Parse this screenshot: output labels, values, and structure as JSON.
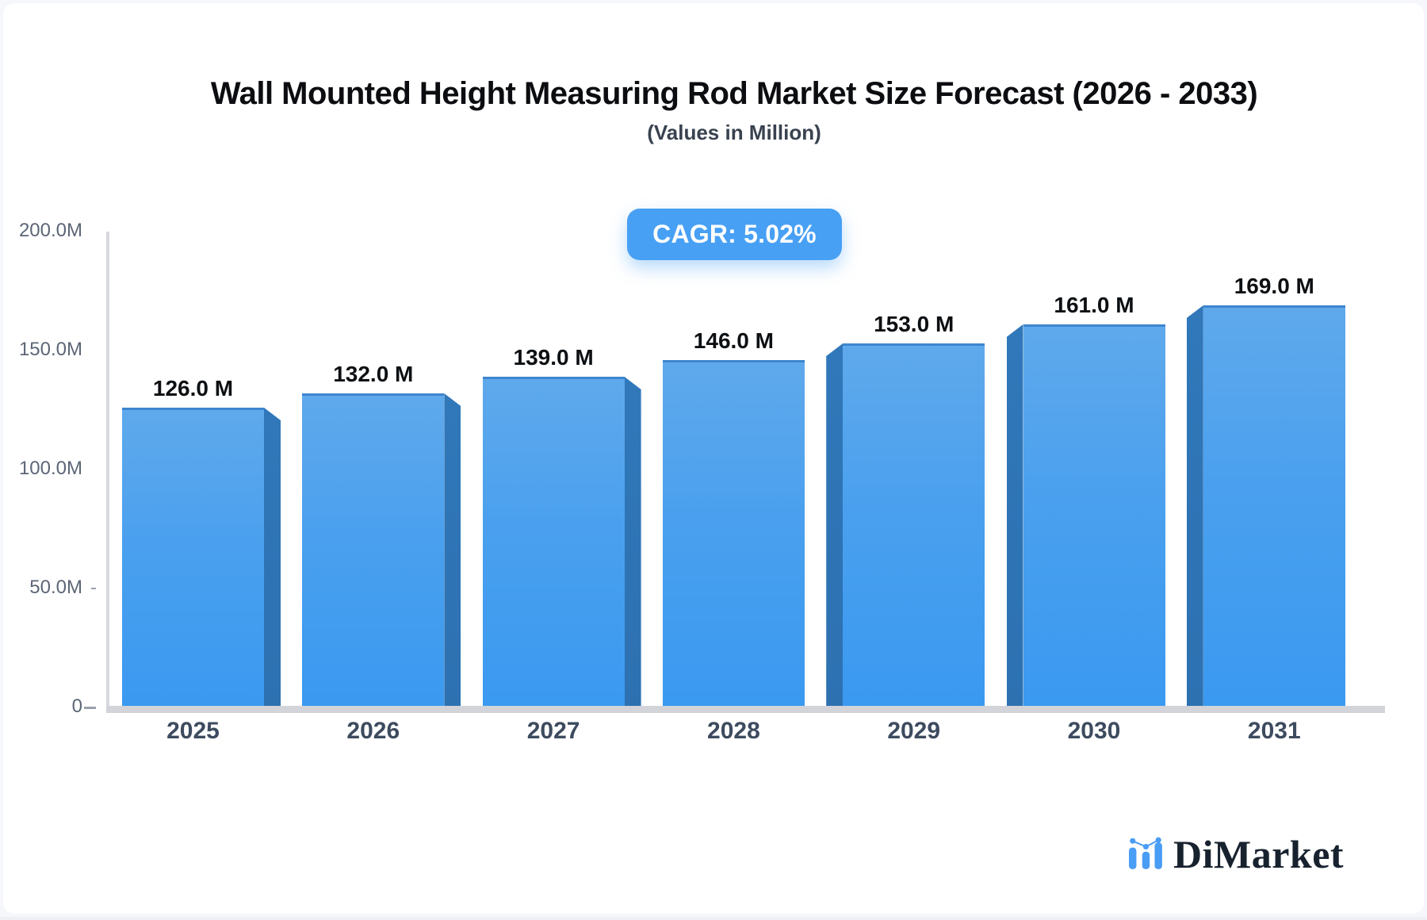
{
  "header": {
    "title": "Wall Mounted Height Measuring Rod Market Size Forecast (2026 - 2033)",
    "subtitle": "(Values in Million)",
    "cagr_label": "CAGR: 5.02%"
  },
  "chart_data": {
    "type": "bar",
    "title": "Wall Mounted Height Measuring Rod Market Size Forecast (2026 - 2033)",
    "subtitle": "(Values in Million)",
    "unit": "Million",
    "cagr": "5.02%",
    "categories": [
      "2025",
      "2026",
      "2027",
      "2028",
      "2029",
      "2030",
      "2031"
    ],
    "values": [
      126,
      132,
      139,
      146,
      153,
      161,
      169
    ],
    "value_labels": [
      "126.0 M",
      "132.0 M",
      "139.0 M",
      "146.0 M",
      "153.0 M",
      "161.0 M",
      "169.0 M"
    ],
    "xlabel": "",
    "ylabel": "",
    "ylim": [
      0,
      200
    ],
    "y_ticks": [
      {
        "label": "200.0M",
        "value": 200
      },
      {
        "label": "150.0M",
        "value": 150
      },
      {
        "label": "100.0M",
        "value": 100
      },
      {
        "label": "50.0M",
        "value": 50
      },
      {
        "label": "0",
        "value": 0
      }
    ],
    "grid": false,
    "legend": false,
    "bar_style": "3d-extruded"
  },
  "colors": {
    "badge_blue": "#47a0f4",
    "bar_face_top": "#5fa9ec",
    "bar_face_bottom": "#3a99f0",
    "bar_top_edge": "#3e86ce",
    "bar_side": "#2e74b5",
    "axis_line": "#d7d9de",
    "baseline": "#d2d4d9",
    "y_label_text": "#5c6676",
    "year_label_text": "#3d4b5f",
    "value_label_text": "#0d1013",
    "logo_navy": "#18222f",
    "logo_blue": "#4a9df5"
  },
  "footer": {
    "logo_text": "DiMarket"
  }
}
